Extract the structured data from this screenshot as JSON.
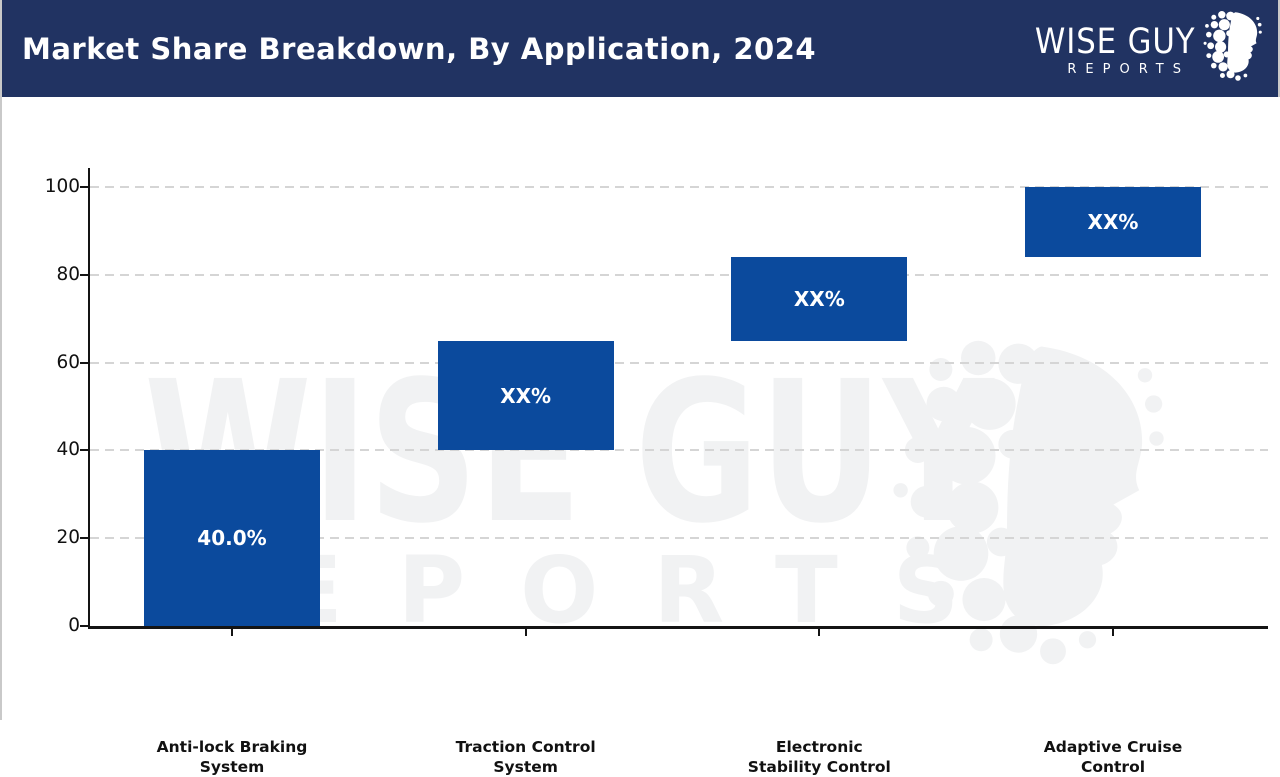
{
  "header": {
    "title": "Market Share Breakdown, By Application, 2024",
    "logo": {
      "line1": "WISE GUY",
      "line2": "REPORTS"
    }
  },
  "watermark": {
    "line1": "WISE GUY",
    "line2": "REPORTS"
  },
  "colors": {
    "header_bg": "#213362",
    "bar": "#0b4a9d",
    "bar_label": "#ffffff",
    "grid": "#d5d5d5",
    "axis": "#141414",
    "watermark": "#f1f2f3"
  },
  "chart_data": {
    "type": "bar",
    "subtype": "floating-waterfall",
    "title": "Market Share Breakdown, By Application, 2024",
    "categories": [
      "Anti-lock Braking\nSystem",
      "Traction Control\nSystem",
      "Electronic\nStability Control",
      "Adaptive Cruise\nControl"
    ],
    "series": [
      {
        "name": "Market Share (%)",
        "segments": [
          {
            "category": "Anti-lock Braking System",
            "from": 0,
            "to": 40,
            "label": "40.0%"
          },
          {
            "category": "Traction Control System",
            "from": 40,
            "to": 65,
            "label": "XX%"
          },
          {
            "category": "Electronic Stability Control",
            "from": 65,
            "to": 84,
            "label": "XX%"
          },
          {
            "category": "Adaptive Cruise Control",
            "from": 84,
            "to": 100,
            "label": "XX%"
          }
        ]
      }
    ],
    "ylim": [
      0,
      100
    ],
    "yticks": [
      0,
      20,
      40,
      60,
      80,
      100
    ],
    "xlabel": "",
    "ylabel": "",
    "grid": {
      "horizontal": true,
      "style": "dashed"
    },
    "legend": null
  }
}
